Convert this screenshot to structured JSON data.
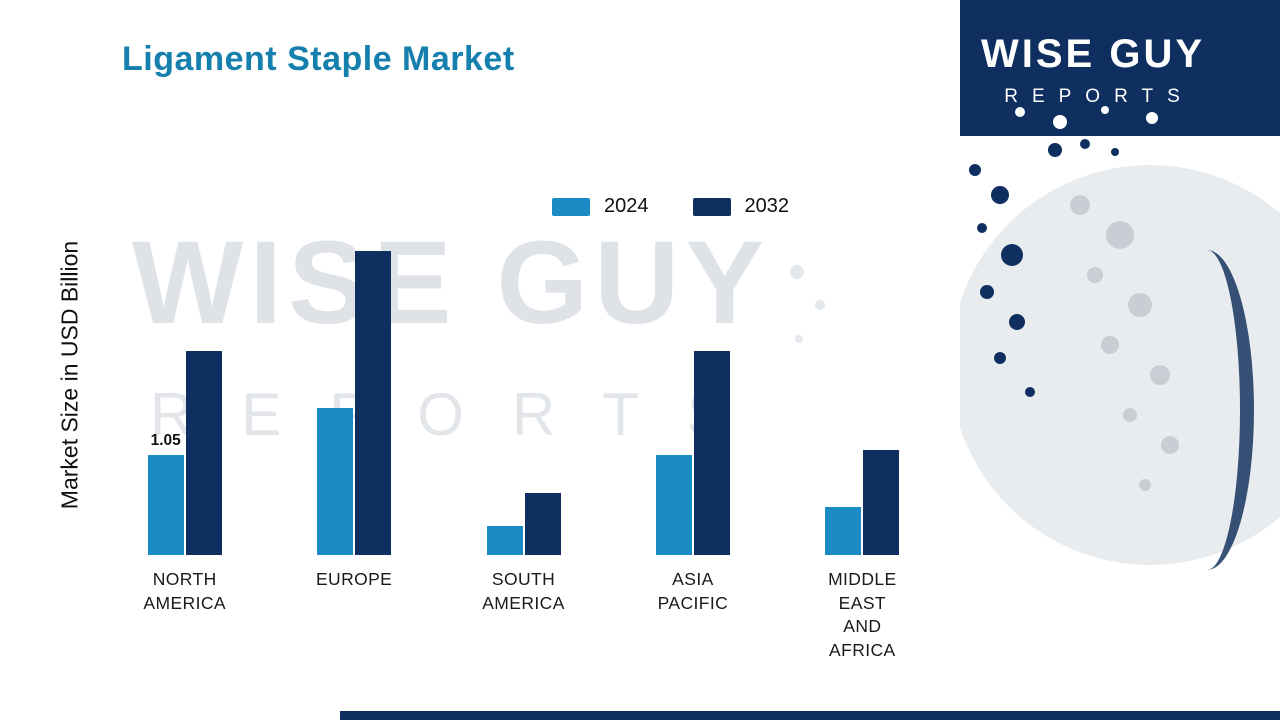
{
  "page": {
    "title": "Ligament Staple Market"
  },
  "colors": {
    "accent_title": "#1580ad",
    "navy": "#0e2f5f",
    "light_blue": "#1a8bc4",
    "watermark": "#dfe3e8",
    "face_gray": "#e9ecef",
    "label_text": "#1a1a1a"
  },
  "logo": {
    "line1": "WISE GUY",
    "line2": "REPORTS"
  },
  "watermark": {
    "line1": "WISE GUY",
    "line2": "REPORTS"
  },
  "chart_data": {
    "type": "bar",
    "title": "Ligament Staple Market",
    "xlabel": "",
    "ylabel": "Market Size in USD Billion",
    "categories": [
      "NORTH AMERICA",
      "EUROPE",
      "SOUTH AMERICA",
      "ASIA PACIFIC",
      "MIDDLE EAST AND AFRICA"
    ],
    "category_lines": [
      [
        "NORTH",
        "AMERICA"
      ],
      [
        "EUROPE"
      ],
      [
        "SOUTH",
        "AMERICA"
      ],
      [
        "ASIA",
        "PACIFIC"
      ],
      [
        "MIDDLE",
        "EAST",
        "AND",
        "AFRICA"
      ]
    ],
    "series": [
      {
        "name": "2024",
        "color": "#1a8bc4",
        "values": [
          1.05,
          1.55,
          0.3,
          1.05,
          0.5
        ],
        "data_labels": [
          "1.05",
          null,
          null,
          null,
          null
        ]
      },
      {
        "name": "2032",
        "color": "#0e2f5f",
        "values": [
          2.15,
          3.2,
          0.65,
          2.15,
          1.1
        ],
        "data_labels": [
          null,
          null,
          null,
          null,
          null
        ]
      }
    ],
    "ylim": [
      0,
      3.5
    ],
    "grid": false,
    "legend_position": "top"
  }
}
